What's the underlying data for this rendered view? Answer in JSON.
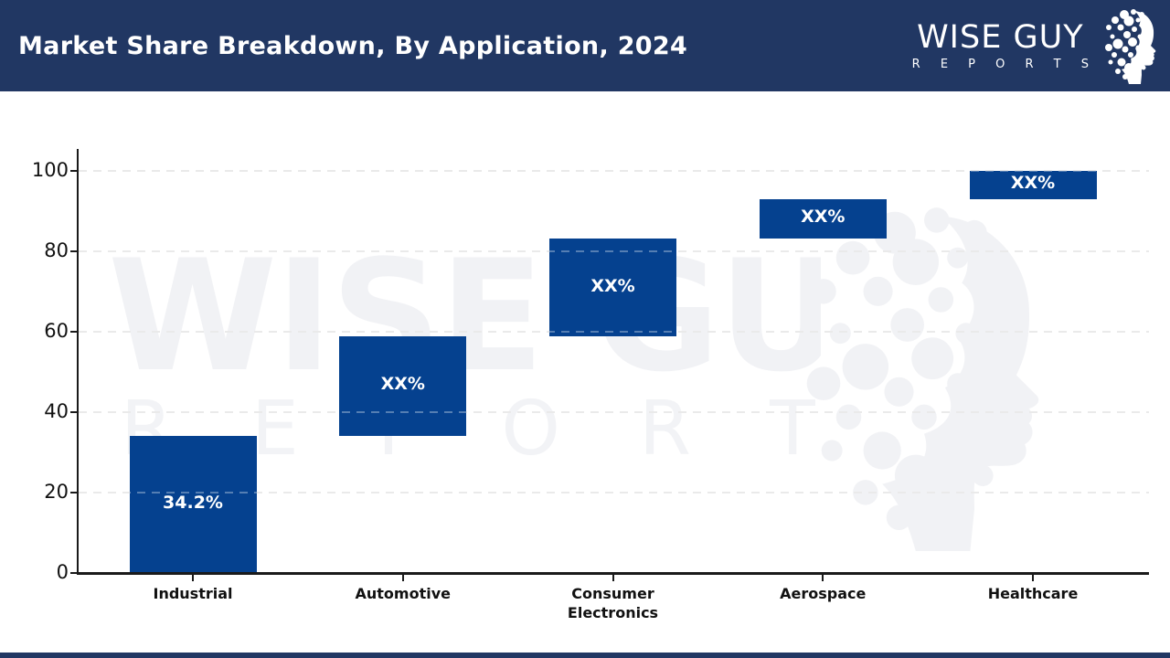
{
  "header": {
    "title": "Market Share Breakdown, By Application, 2024",
    "brand": {
      "line1": "WISE GUY",
      "line2": "REPORTS"
    },
    "bg_color": "#213763"
  },
  "watermark": {
    "line1": "WISE GUY",
    "line2": "R E P O R T S"
  },
  "chart_data": {
    "type": "bar",
    "subtype": "waterfall",
    "title": "Market Share Breakdown, By Application, 2024",
    "categories": [
      "Industrial",
      "Automotive",
      "Consumer\nElectronics",
      "Aerospace",
      "Healthcare"
    ],
    "segments": [
      {
        "category": "Industrial",
        "start": 0,
        "end": 34.2,
        "label": "34.2%"
      },
      {
        "category": "Automotive",
        "start": 34.2,
        "end": 58.8,
        "label": "XX%"
      },
      {
        "category": "Consumer Electronics",
        "start": 58.8,
        "end": 83.2,
        "label": "XX%"
      },
      {
        "category": "Aerospace",
        "start": 83.2,
        "end": 93.0,
        "label": "XX%"
      },
      {
        "category": "Healthcare",
        "start": 93.0,
        "end": 100,
        "label": "XX%"
      }
    ],
    "xlabel": "",
    "ylabel": "",
    "yticks": [
      0,
      20,
      40,
      60,
      80,
      100
    ],
    "ylim": [
      0,
      105.5
    ],
    "grid": "horizontal-dashed",
    "legend": "none",
    "bar_color": "#05418F",
    "bar_label_color": "#ffffff",
    "grid_color": "#e0e0e0",
    "axis_color": "#1a1a1a"
  }
}
